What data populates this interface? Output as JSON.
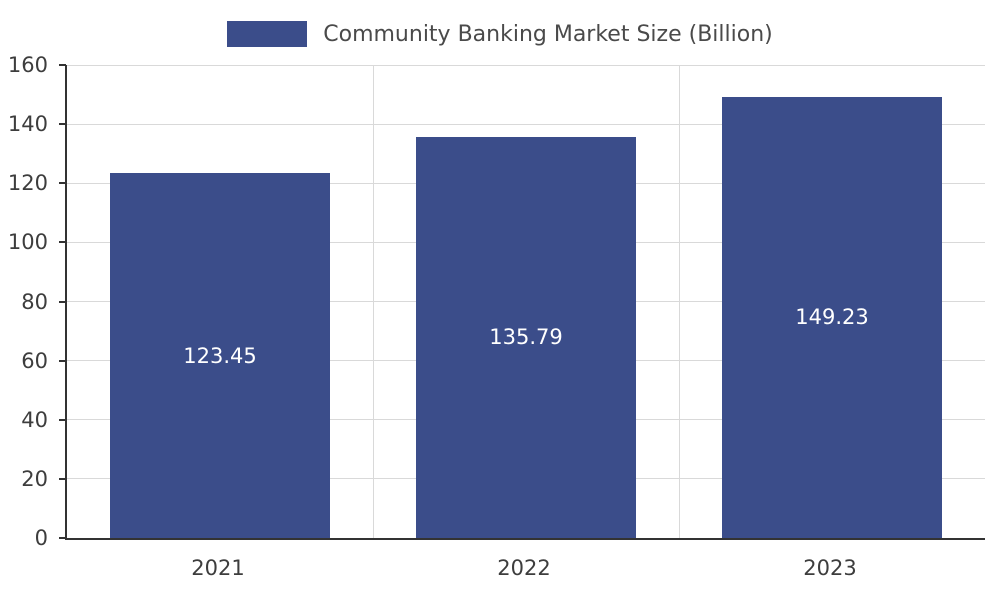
{
  "legend": {
    "title": "Community Banking Market Size (Billion)"
  },
  "chart_data": {
    "type": "bar",
    "title": "Community Banking Market Size (Billion)",
    "categories": [
      "2021",
      "2022",
      "2023"
    ],
    "values": [
      123.45,
      135.79,
      149.23
    ],
    "data_labels": [
      "123.45",
      "135.79",
      "149.23"
    ],
    "xlabel": "",
    "ylabel": "",
    "ylim": [
      0,
      160
    ],
    "ytick_step": 20,
    "ytick_labels": [
      "0",
      "20",
      "40",
      "60",
      "80",
      "100",
      "120",
      "140",
      "160"
    ],
    "grid": true,
    "legend_position": "top-center",
    "colors": {
      "bar": "#3b4d8a",
      "bar_label_text": "#ffffff",
      "axis": "#333333",
      "grid": "#d9d9d9",
      "tick_text": "#3d3d3d",
      "legend_text": "#4a4a4a"
    }
  }
}
